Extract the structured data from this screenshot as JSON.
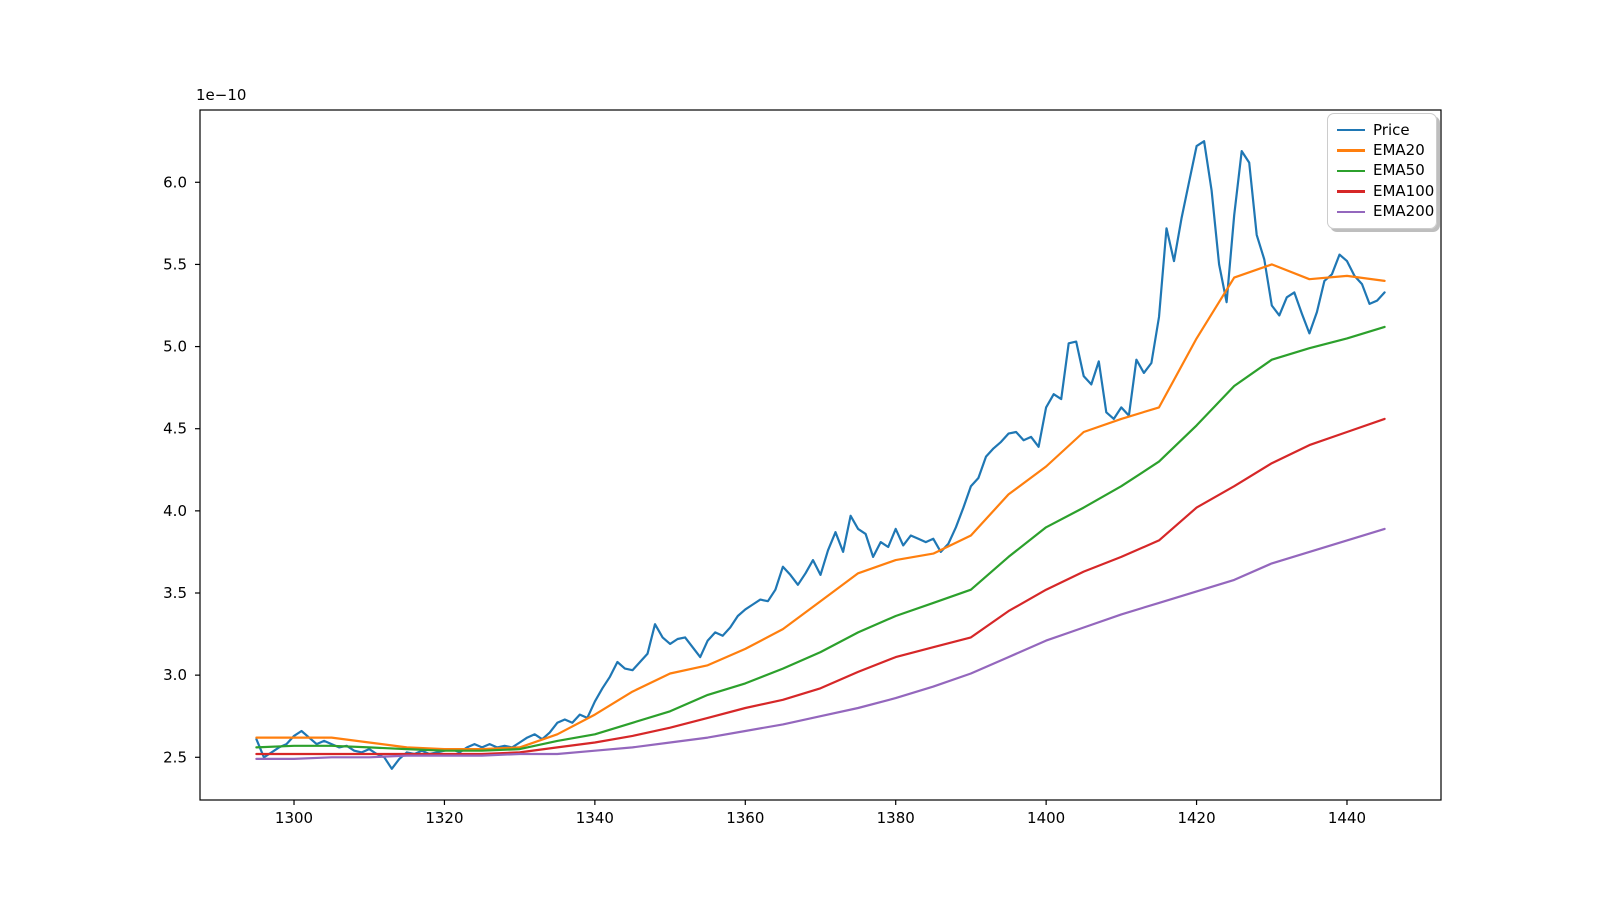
{
  "figure": {
    "background": "#ffffff"
  },
  "axes": {
    "offset_text": "1e−10",
    "xlim": [
      1287.5,
      1452.5
    ],
    "ylim": [
      2.24,
      6.44
    ],
    "xticks": [
      1300,
      1320,
      1340,
      1360,
      1380,
      1400,
      1420,
      1440
    ],
    "xtick_labels": [
      "1300",
      "1320",
      "1340",
      "1360",
      "1380",
      "1400",
      "1420",
      "1440"
    ],
    "yticks": [
      2.5,
      3.0,
      3.5,
      4.0,
      4.5,
      5.0,
      5.5,
      6.0
    ],
    "ytick_labels": [
      "2.5",
      "3.0",
      "3.5",
      "4.0",
      "4.5",
      "5.0",
      "5.5",
      "6.0"
    ],
    "spine_color": "#000000",
    "tick_color": "#000000",
    "label_color": "#000000",
    "grid": false
  },
  "legend": {
    "position": "upper right",
    "entries": [
      {
        "label": "Price",
        "color": "#1f77b4"
      },
      {
        "label": "EMA20",
        "color": "#ff7f0e"
      },
      {
        "label": "EMA50",
        "color": "#2ca02c"
      },
      {
        "label": "EMA100",
        "color": "#d62728"
      },
      {
        "label": "EMA200",
        "color": "#9467bd"
      }
    ]
  },
  "chart_data": {
    "type": "line",
    "title": "",
    "xlabel": "",
    "ylabel": "",
    "value_scale": "1e-10",
    "xlim": [
      1287.5,
      1452.5
    ],
    "ylim": [
      2.24,
      6.44
    ],
    "legend_position": "upper right",
    "grid": false,
    "series": [
      {
        "name": "Price",
        "color": "#1f77b4",
        "x_start": 1295,
        "x_step": 1,
        "values": [
          2.61,
          2.5,
          2.53,
          2.56,
          2.58,
          2.63,
          2.66,
          2.62,
          2.58,
          2.6,
          2.58,
          2.56,
          2.57,
          2.54,
          2.53,
          2.55,
          2.52,
          2.5,
          2.43,
          2.49,
          2.53,
          2.52,
          2.54,
          2.52,
          2.53,
          2.54,
          2.55,
          2.53,
          2.56,
          2.58,
          2.56,
          2.58,
          2.56,
          2.57,
          2.56,
          2.59,
          2.62,
          2.64,
          2.61,
          2.65,
          2.71,
          2.73,
          2.71,
          2.76,
          2.74,
          2.84,
          2.92,
          2.99,
          3.08,
          3.04,
          3.03,
          3.08,
          3.13,
          3.31,
          3.23,
          3.19,
          3.22,
          3.23,
          3.17,
          3.11,
          3.21,
          3.26,
          3.24,
          3.29,
          3.36,
          3.4,
          3.43,
          3.46,
          3.45,
          3.52,
          3.66,
          3.61,
          3.55,
          3.62,
          3.7,
          3.61,
          3.76,
          3.87,
          3.75,
          3.97,
          3.89,
          3.86,
          3.72,
          3.81,
          3.78,
          3.89,
          3.79,
          3.85,
          3.83,
          3.81,
          3.83,
          3.75,
          3.8,
          3.9,
          4.02,
          4.15,
          4.2,
          4.33,
          4.38,
          4.42,
          4.47,
          4.48,
          4.43,
          4.45,
          4.39,
          4.63,
          4.71,
          4.68,
          5.02,
          5.03,
          4.82,
          4.77,
          4.91,
          4.6,
          4.56,
          4.63,
          4.58,
          4.92,
          4.84,
          4.9,
          5.18,
          5.72,
          5.52,
          5.78,
          6.0,
          6.22,
          6.25,
          5.95,
          5.5,
          5.27,
          5.8,
          6.19,
          6.12,
          5.68,
          5.53,
          5.25,
          5.19,
          5.3,
          5.33,
          5.2,
          5.08,
          5.21,
          5.4,
          5.44,
          5.56,
          5.52,
          5.43,
          5.38,
          5.26,
          5.28,
          5.33
        ]
      },
      {
        "name": "EMA20",
        "color": "#ff7f0e",
        "x": [
          1295,
          1300,
          1305,
          1310,
          1315,
          1320,
          1325,
          1330,
          1335,
          1340,
          1345,
          1350,
          1355,
          1360,
          1365,
          1370,
          1375,
          1380,
          1385,
          1390,
          1395,
          1400,
          1405,
          1410,
          1415,
          1420,
          1425,
          1430,
          1435,
          1440,
          1445
        ],
        "values": [
          2.62,
          2.62,
          2.62,
          2.59,
          2.56,
          2.55,
          2.55,
          2.56,
          2.64,
          2.76,
          2.9,
          3.01,
          3.06,
          3.16,
          3.28,
          3.45,
          3.62,
          3.7,
          3.74,
          3.85,
          4.1,
          4.27,
          4.48,
          4.56,
          4.63,
          5.05,
          5.42,
          5.5,
          5.41,
          5.43,
          5.4
        ]
      },
      {
        "name": "EMA50",
        "color": "#2ca02c",
        "x": [
          1295,
          1300,
          1305,
          1310,
          1315,
          1320,
          1325,
          1330,
          1335,
          1340,
          1345,
          1350,
          1355,
          1360,
          1365,
          1370,
          1375,
          1380,
          1385,
          1390,
          1395,
          1400,
          1405,
          1410,
          1415,
          1420,
          1425,
          1430,
          1435,
          1440,
          1445
        ],
        "values": [
          2.56,
          2.57,
          2.57,
          2.56,
          2.55,
          2.54,
          2.54,
          2.55,
          2.6,
          2.64,
          2.71,
          2.78,
          2.88,
          2.95,
          3.04,
          3.14,
          3.26,
          3.36,
          3.44,
          3.52,
          3.72,
          3.9,
          4.02,
          4.15,
          4.3,
          4.52,
          4.76,
          4.92,
          4.99,
          5.05,
          5.12
        ]
      },
      {
        "name": "EMA100",
        "color": "#d62728",
        "x": [
          1295,
          1300,
          1305,
          1310,
          1315,
          1320,
          1325,
          1330,
          1335,
          1340,
          1345,
          1350,
          1355,
          1360,
          1365,
          1370,
          1375,
          1380,
          1385,
          1390,
          1395,
          1400,
          1405,
          1410,
          1415,
          1420,
          1425,
          1430,
          1435,
          1440,
          1445
        ],
        "values": [
          2.52,
          2.52,
          2.52,
          2.52,
          2.52,
          2.52,
          2.52,
          2.53,
          2.56,
          2.59,
          2.63,
          2.68,
          2.74,
          2.8,
          2.85,
          2.92,
          3.02,
          3.11,
          3.17,
          3.23,
          3.39,
          3.52,
          3.63,
          3.72,
          3.82,
          4.02,
          4.15,
          4.29,
          4.4,
          4.48,
          4.56
        ]
      },
      {
        "name": "EMA200",
        "color": "#9467bd",
        "x": [
          1295,
          1300,
          1305,
          1310,
          1315,
          1320,
          1325,
          1330,
          1335,
          1340,
          1345,
          1350,
          1355,
          1360,
          1365,
          1370,
          1375,
          1380,
          1385,
          1390,
          1395,
          1400,
          1405,
          1410,
          1415,
          1420,
          1425,
          1430,
          1435,
          1440,
          1445
        ],
        "values": [
          2.49,
          2.49,
          2.5,
          2.5,
          2.51,
          2.51,
          2.51,
          2.52,
          2.52,
          2.54,
          2.56,
          2.59,
          2.62,
          2.66,
          2.7,
          2.75,
          2.8,
          2.86,
          2.93,
          3.01,
          3.11,
          3.21,
          3.29,
          3.37,
          3.44,
          3.51,
          3.58,
          3.68,
          3.75,
          3.82,
          3.89
        ]
      }
    ]
  }
}
